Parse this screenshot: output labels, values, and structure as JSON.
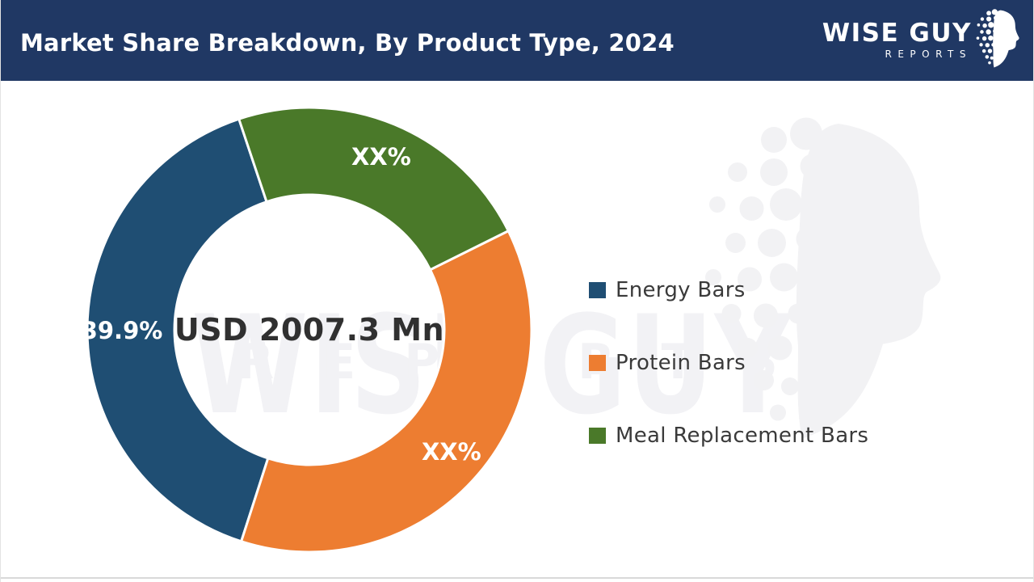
{
  "header": {
    "title": "Market Share Breakdown, By Product Type, 2024",
    "logo": {
      "line1": "WISE GUY",
      "line2": "REPORTS"
    }
  },
  "chart_data": {
    "type": "pie",
    "subtype": "donut",
    "title": "Market Share Breakdown, By Product Type, 2024",
    "center_label": "USD 2007.3 Mn",
    "legend_position": "right",
    "segments": [
      {
        "name": "Energy Bars",
        "value": 39.9,
        "label": "39.9%",
        "color": "#1F4E73"
      },
      {
        "name": "Protein Bars",
        "value": 37.3,
        "label": "XX%",
        "color": "#ED7D31"
      },
      {
        "name": "Meal Replacement Bars",
        "value": 22.8,
        "label": "XX%",
        "color": "#4A7929"
      }
    ]
  },
  "watermark": {
    "line1": "WISE GUY",
    "line2": "REPORTS"
  },
  "colors": {
    "header_bg": "#203864",
    "border": "#d9d9d9",
    "center_text": "#303030",
    "legend_text": "#3a3a3a",
    "watermark": "#f2f2f5"
  }
}
